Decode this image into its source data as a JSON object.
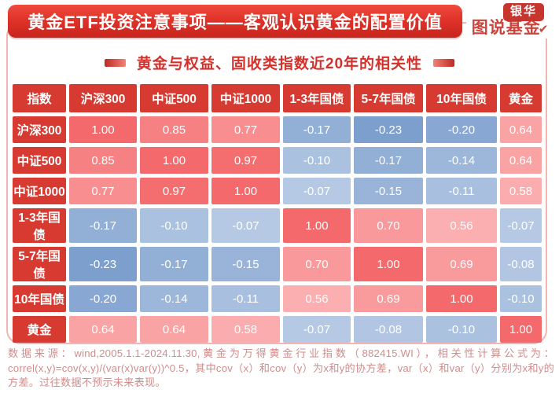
{
  "header": {
    "title": "黄金ETF投资注意事项——客观认识黄金的配置价值",
    "logo": {
      "brand": "银华",
      "series": "图说基金",
      "check": "✔"
    }
  },
  "subtitle": "黄金与权益、固收类指数近20年的相关性",
  "table": {
    "corner_label": "指数",
    "columns": [
      "指数",
      "沪深300",
      "中证500",
      "中证1000",
      "1-3年国债",
      "5-7年国债",
      "10年国债",
      "黄金"
    ]
  },
  "chart_data": {
    "type": "heatmap",
    "title": "黄金与权益、固收类指数近20年的相关性",
    "row_labels": [
      "沪深300",
      "中证500",
      "中证1000",
      "1-3年国债",
      "5-7年国债",
      "10年国债",
      "黄金"
    ],
    "col_labels": [
      "沪深300",
      "中证500",
      "中证1000",
      "1-3年国债",
      "5-7年国债",
      "10年国债",
      "黄金"
    ],
    "matrix": [
      [
        1.0,
        0.85,
        0.77,
        -0.17,
        -0.23,
        -0.2,
        0.64
      ],
      [
        0.85,
        1.0,
        0.97,
        -0.1,
        -0.17,
        -0.14,
        0.64
      ],
      [
        0.77,
        0.97,
        1.0,
        -0.07,
        -0.15,
        -0.11,
        0.58
      ],
      [
        -0.17,
        -0.1,
        -0.07,
        1.0,
        0.7,
        0.56,
        -0.07
      ],
      [
        -0.23,
        -0.17,
        -0.15,
        0.7,
        1.0,
        0.69,
        -0.08
      ],
      [
        -0.2,
        -0.14,
        -0.11,
        0.56,
        0.69,
        1.0,
        -0.1
      ],
      [
        0.64,
        0.64,
        0.58,
        -0.07,
        -0.08,
        -0.1,
        1.0
      ]
    ],
    "value_format": "0.00",
    "legend": "none",
    "colorscale_note": "positive correlations shaded red, negative shaded blue"
  },
  "colors": {
    "banner_red": "#e0332a",
    "cell_header_red": "#d73a31",
    "frame_border": "#f2b5b1",
    "subtitle_red": "#d5312b",
    "footer_text": "#d28c8c",
    "heatmap": {
      "pos_max": "#f4696b",
      "pos_zero": "#fcb9bb",
      "pos_range": [
        0.5,
        1.0
      ],
      "neg_low": "#b6c9e4",
      "neg_high": "#7d9fce",
      "neg_range": [
        0.07,
        0.23
      ]
    }
  },
  "footer": {
    "text": "数据来源：wind,2005.1.1-2024.11.30,黄金为万得黄金行业指数（882415.WI），相关性计算公式为：correl(x,y)=cov(x,y)/(var(x)var(y))^0.5，其中cov（x）和cov（y）为x和y的协方差，var（x）和var（y）分别为x和y的方差。过往数据不预示未来表现。"
  }
}
